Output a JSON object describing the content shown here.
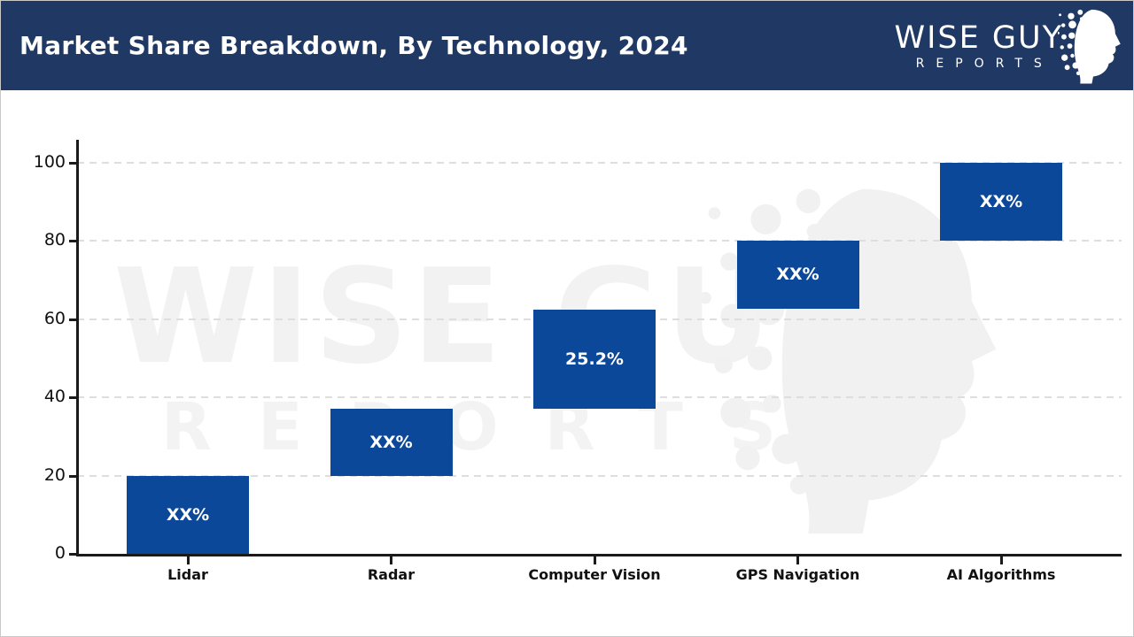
{
  "header": {
    "title": "Market Share Breakdown, By Technology, 2024",
    "logo": {
      "line1": "WISE GUY",
      "line2": "REPORTS"
    }
  },
  "watermark": {
    "line1": "WISE GUY",
    "line2": "REPORTS"
  },
  "chart_data": {
    "type": "bar",
    "subtype": "waterfall",
    "title": "Market Share Breakdown, By Technology, 2024",
    "categories": [
      "Lidar",
      "Radar",
      "Computer Vision",
      "GPS Navigation",
      "AI Algorithms"
    ],
    "segments": [
      {
        "category": "Lidar",
        "start": 0,
        "end": 20,
        "label": "XX%"
      },
      {
        "category": "Radar",
        "start": 20,
        "end": 37.2,
        "label": "XX%"
      },
      {
        "category": "Computer Vision",
        "start": 37.2,
        "end": 62.4,
        "label": "25.2%"
      },
      {
        "category": "GPS Navigation",
        "start": 62.7,
        "end": 80.1,
        "label": "XX%"
      },
      {
        "category": "AI Algorithms",
        "start": 80.2,
        "end": 100,
        "label": "XX%"
      }
    ],
    "yticks": [
      0,
      20,
      40,
      60,
      80,
      100
    ],
    "ylim": [
      0,
      105
    ],
    "xlabel": "",
    "ylabel": "",
    "grid": "horizontal-dashed",
    "legend": "none",
    "bar_color": "#0C4899",
    "label_color": "#FFFFFF"
  },
  "colors": {
    "header_bg": "#1F3864",
    "bar": "#0C4899",
    "grid": "#DEDEDE",
    "axis": "#1A1A1A",
    "watermark": "#F2F2F2",
    "page_border": "#C9C9C9"
  }
}
